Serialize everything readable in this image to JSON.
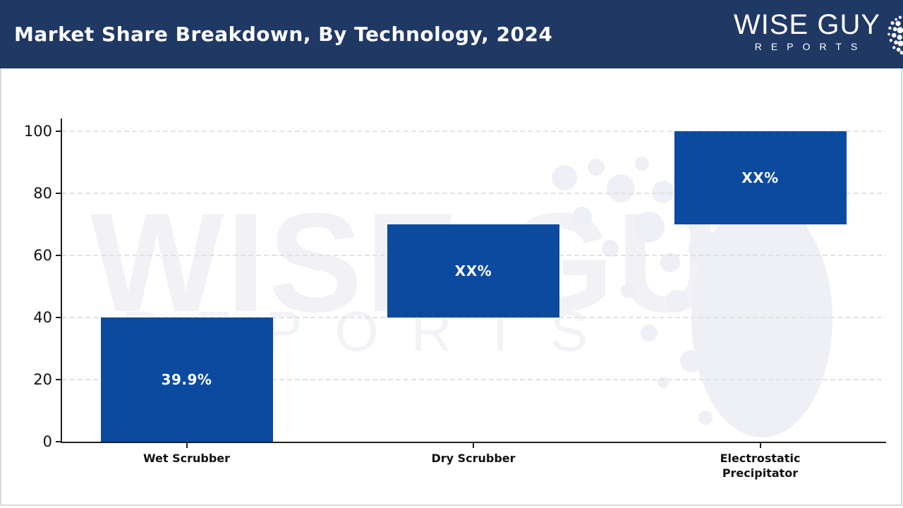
{
  "header": {
    "title": "Market Share Breakdown, By Technology, 2024",
    "logo": {
      "name": "Wise Guy Reports",
      "line1": "WISE GUY",
      "line2": "REPORTS"
    }
  },
  "watermark": {
    "line1": "WISE GUY",
    "line2": "REPORTS"
  },
  "chart_data": {
    "type": "bar",
    "subtype": "waterfall",
    "title": "Market Share Breakdown, By Technology, 2024",
    "categories": [
      "Wet Scrubber",
      "Dry Scrubber",
      "Electrostatic Precipitator"
    ],
    "segments": [
      {
        "category": "Wet Scrubber",
        "start": 0,
        "end": 39.9,
        "label": "39.9%"
      },
      {
        "category": "Dry Scrubber",
        "start": 40,
        "end": 70,
        "label": "XX%"
      },
      {
        "category": "Electrostatic Precipitator",
        "start": 70,
        "end": 100,
        "label": "XX%"
      }
    ],
    "xlabel": "",
    "ylabel": "",
    "ylim": [
      0,
      100
    ],
    "yticks": [
      0,
      20,
      40,
      60,
      80,
      100
    ],
    "grid": "horizontal-dashed",
    "legend": "none",
    "bar_color": "#0b4a9f",
    "value_label_color": "#ffffff"
  }
}
